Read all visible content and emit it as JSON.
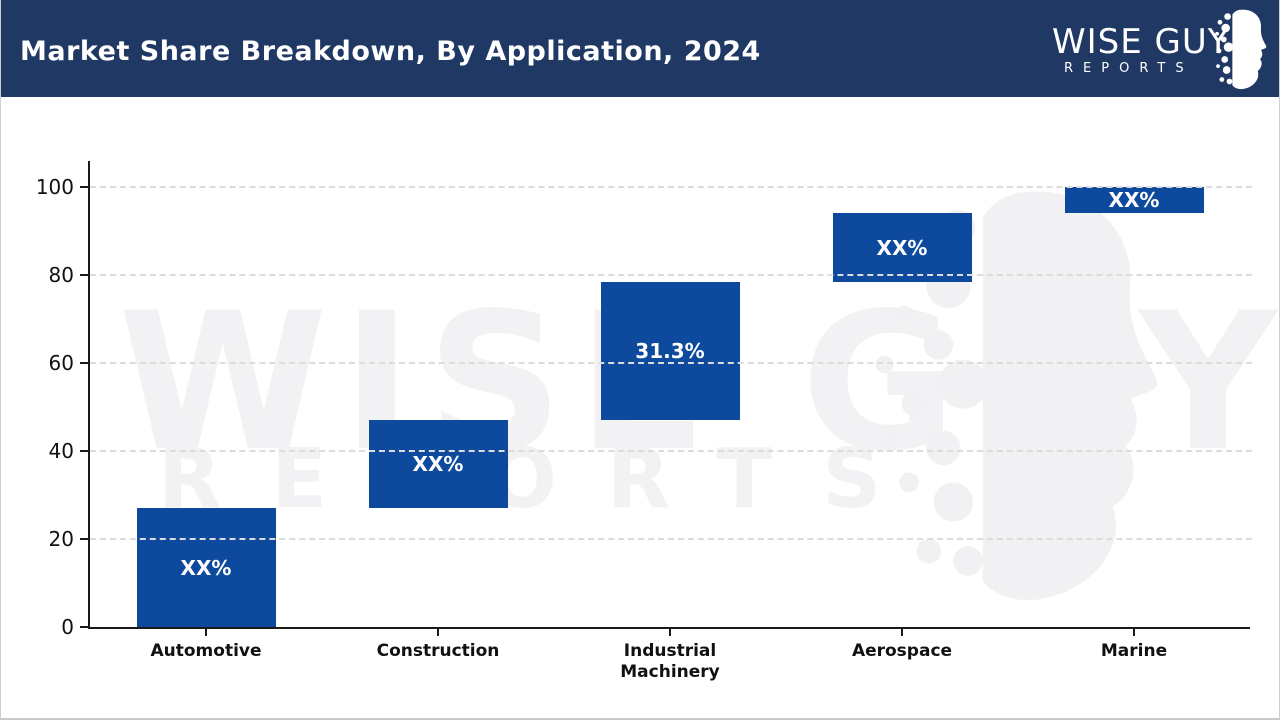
{
  "header": {
    "title": "Market Share Breakdown, By Application, 2024",
    "logo": {
      "wordmark": "WISE GUY",
      "subtext": "REPORTS"
    }
  },
  "watermark": {
    "wordmark": "WISE GUY",
    "subtext": "REPORTS"
  },
  "colors": {
    "header_background": "#1F3864",
    "bar_fill": "#0D4A9D",
    "gridline": "#DCDCDC",
    "axis": "#1A1A1A",
    "bar_label_text": "#FFFFFF",
    "watermark": "#F2F2F4"
  },
  "chart_data": {
    "type": "bar",
    "subtype": "floating-waterfall",
    "title": "Market Share Breakdown, By Application, 2024",
    "xlabel": "",
    "ylabel": "",
    "categories": [
      "Automotive",
      "Construction",
      "Industrial\nMachinery",
      "Aerospace",
      "Marine"
    ],
    "bars": [
      {
        "category": "Automotive",
        "from": 0,
        "to": 27,
        "label": "XX%"
      },
      {
        "category": "Construction",
        "from": 27,
        "to": 47,
        "label": "XX%"
      },
      {
        "category": "Industrial\nMachinery",
        "from": 47,
        "to": 78.3,
        "label": "31.3%"
      },
      {
        "category": "Aerospace",
        "from": 78.3,
        "to": 94,
        "label": "XX%"
      },
      {
        "category": "Marine",
        "from": 94,
        "to": 100,
        "label": "XX%"
      }
    ],
    "yticks": [
      0,
      20,
      40,
      60,
      80,
      100
    ],
    "ylim": [
      0,
      106
    ],
    "grid": "horizontal-dashed",
    "legend": "none",
    "bar_color": "#0D4A9D"
  }
}
